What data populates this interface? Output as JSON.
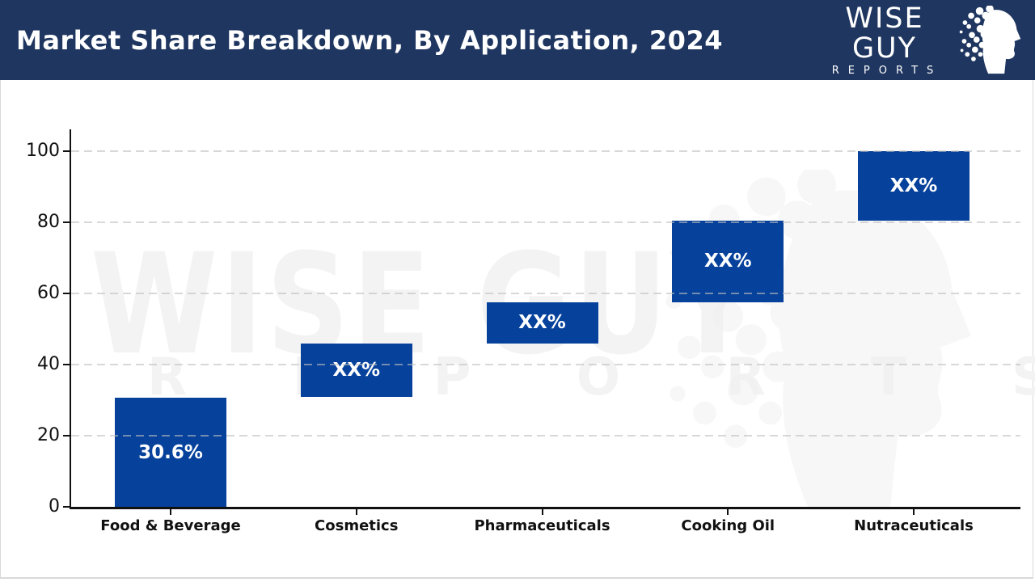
{
  "header": {
    "title": "Market Share Breakdown, By Application, 2024",
    "logo": {
      "line1": "WISE GUY",
      "line2": "REPORTS"
    }
  },
  "watermark": {
    "line1": "WISE GUY",
    "line2": "REPORTS"
  },
  "chart_data": {
    "type": "bar",
    "subtype": "waterfall",
    "title": "Market Share Breakdown, By Application, 2024",
    "xlabel": "",
    "ylabel": "",
    "categories": [
      "Food & Beverage",
      "Cosmetics",
      "Pharmaceuticals",
      "Cooking Oil",
      "Nutraceuticals"
    ],
    "segments": [
      {
        "category": "Food & Beverage",
        "start": 0,
        "end": 30.6,
        "label": "30.6%"
      },
      {
        "category": "Cosmetics",
        "start": 31,
        "end": 46,
        "label": "XX%"
      },
      {
        "category": "Pharmaceuticals",
        "start": 46,
        "end": 57.5,
        "label": "XX%"
      },
      {
        "category": "Cooking Oil",
        "start": 57.5,
        "end": 80.5,
        "label": "XX%"
      },
      {
        "category": "Nutraceuticals",
        "start": 80.5,
        "end": 100,
        "label": "XX%"
      }
    ],
    "y_ticks": [
      0,
      20,
      40,
      60,
      80,
      100
    ],
    "ylim": [
      0,
      106
    ],
    "grid": "horizontal dashed",
    "legend": "none",
    "bar_color": "#06419c",
    "header_color": "#1f3660",
    "gridline_color": "#d8d8d8",
    "axis_color": "#111111"
  }
}
